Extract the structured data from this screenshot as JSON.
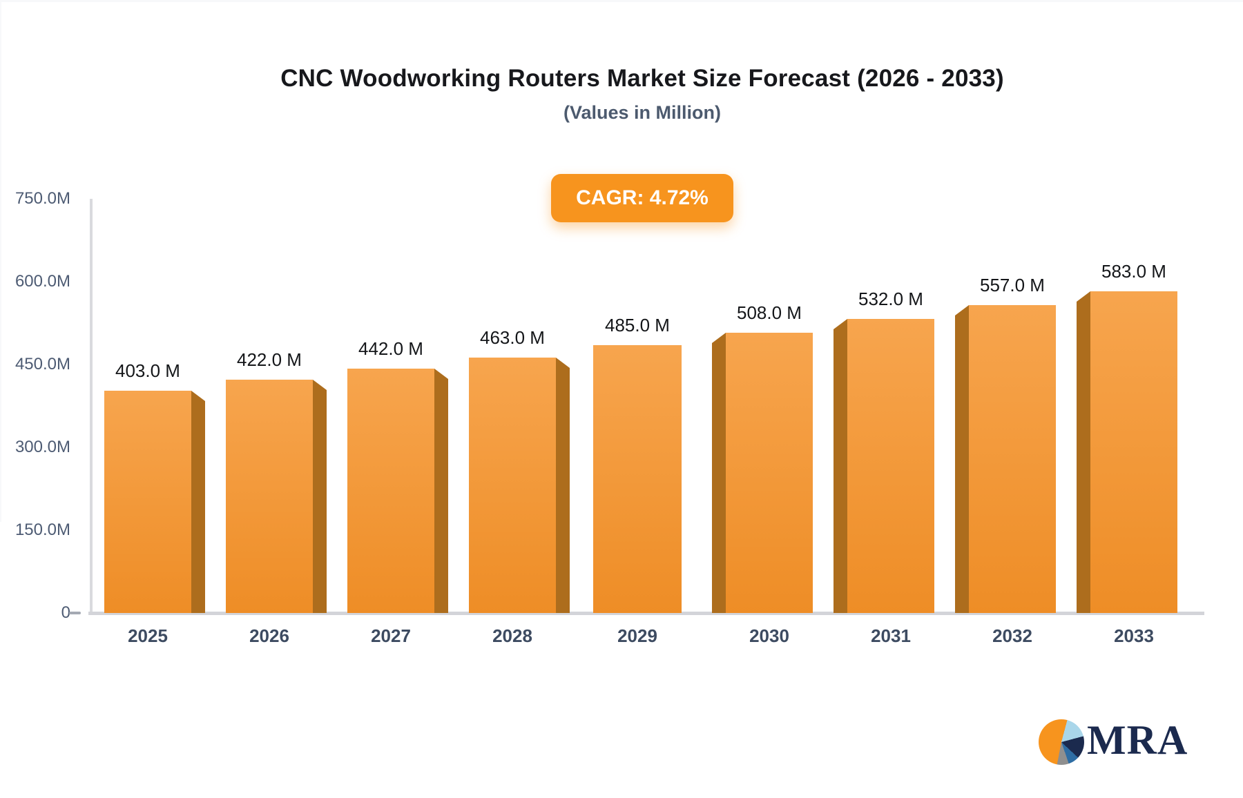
{
  "header": {
    "title": "CNC Woodworking Routers Market Size Forecast (2026 - 2033)",
    "subtitle": "(Values in Million)",
    "cagr_label": "CAGR: 4.72%"
  },
  "chart_data": {
    "type": "bar",
    "title": "CNC Woodworking Routers Market Size Forecast (2026 - 2033)",
    "subtitle": "(Values in Million)",
    "unit": "Million",
    "categories": [
      "2025",
      "2026",
      "2027",
      "2028",
      "2029",
      "2030",
      "2031",
      "2032",
      "2033"
    ],
    "values": [
      403.0,
      422.0,
      442.0,
      463.0,
      485.0,
      508.0,
      532.0,
      557.0,
      583.0
    ],
    "value_labels": [
      "403.0 M",
      "422.0 M",
      "442.0 M",
      "463.0 M",
      "485.0 M",
      "508.0 M",
      "532.0 M",
      "557.0 M",
      "583.0 M"
    ],
    "cagr": "4.72%",
    "xlabel": "",
    "ylabel": "",
    "ylim": [
      0,
      750
    ],
    "ytick_values": [
      750,
      600,
      450,
      300,
      150,
      0
    ],
    "ytick_labels": [
      "750.0M",
      "600.0M",
      "450.0M",
      "300.0M",
      "150.0M",
      "0"
    ],
    "grid": false,
    "legend": "none",
    "bar_style": "3d-orange-gradient"
  },
  "colors": {
    "bar_top": "#f7a54e",
    "bar_bottom": "#ee8d26",
    "bar_side": "#ad6d1d",
    "accent_orange": "#f7941e",
    "axis_gray": "#d3d4d9",
    "ytick_text": "#4d5b73",
    "xtick_text": "#3d4b61",
    "value_text": "#141619",
    "logo_navy": "#1b2a4e",
    "logo_lightblue": "#a9d6ea",
    "logo_blue": "#2e6da4",
    "logo_gray": "#8f8f8f"
  },
  "logo": {
    "text": "MRA",
    "pie_icon": "pie-chart-icon"
  }
}
